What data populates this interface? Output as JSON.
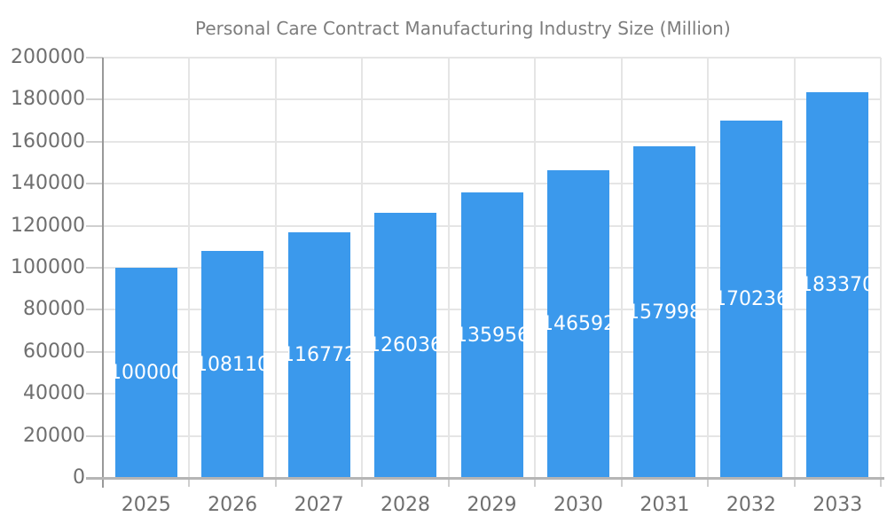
{
  "legend": {
    "series_label": "Personal Care Contract Manufacturing Industry Size (Million)"
  },
  "chart_data": {
    "type": "bar",
    "title": "Personal Care Contract Manufacturing Industry Size (Million)",
    "xlabel": "",
    "ylabel": "",
    "categories": [
      "2025",
      "2026",
      "2027",
      "2028",
      "2029",
      "2030",
      "2031",
      "2032",
      "2033"
    ],
    "values": [
      100000,
      108110,
      116772,
      126036,
      135956,
      146592,
      157998,
      170236,
      183370
    ],
    "value_labels": [
      "100000",
      "108110",
      "116772",
      "126036",
      "135956",
      "146592",
      "157998",
      "170236",
      "183370"
    ],
    "y_ticks": [
      0,
      20000,
      40000,
      60000,
      80000,
      100000,
      120000,
      140000,
      160000,
      180000,
      200000
    ],
    "y_tick_labels": [
      "0",
      "20000",
      "40000",
      "60000",
      "80000",
      "100000",
      "120000",
      "140000",
      "160000",
      "180000",
      "200000"
    ],
    "ylim": [
      0,
      200000
    ],
    "grid": true,
    "legend_position": "top",
    "bar_color": "#3b99ec",
    "bar_label_color": "#ffffff"
  },
  "colors": {
    "accent_blue": "#3b99ec",
    "grid_line": "#e5e5e5",
    "y_axis_line": "#999999",
    "x_axis_line": "#b5b5b5",
    "tick_mark": "#cfcfcf",
    "tick_text": "#6f6f6f",
    "legend_text": "#7d7d7d",
    "background": "#ffffff"
  }
}
